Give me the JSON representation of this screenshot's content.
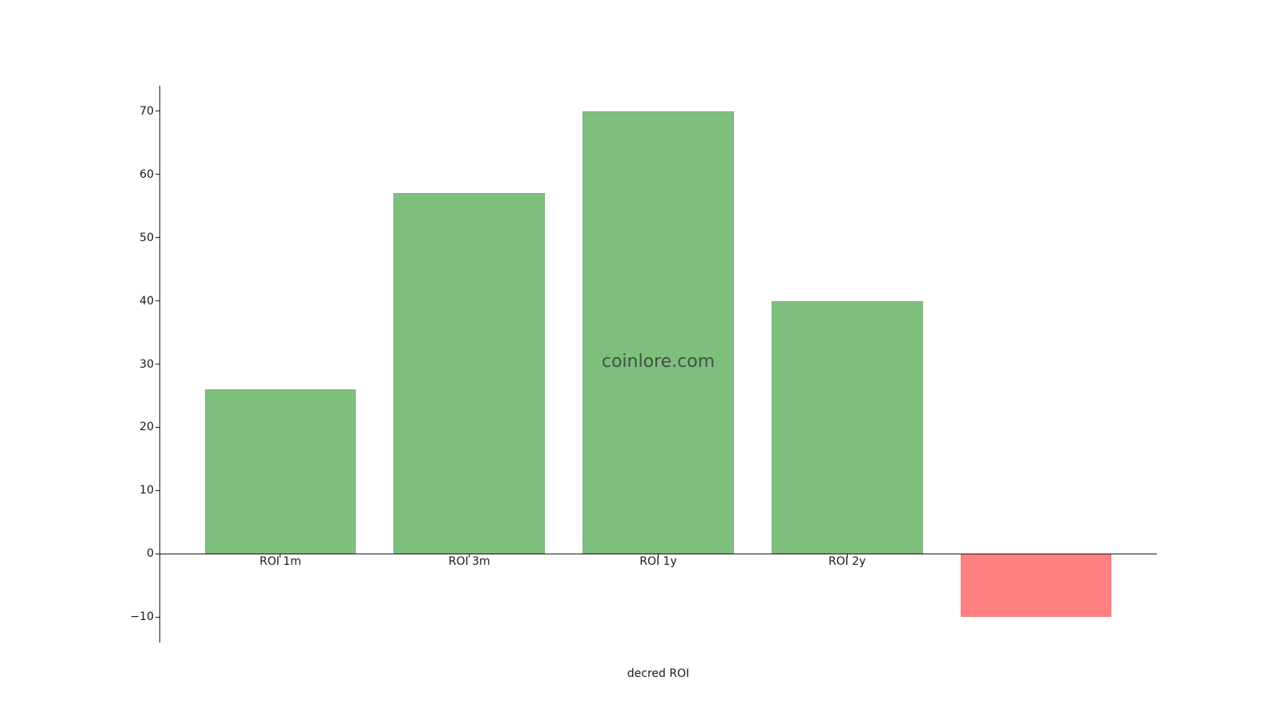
{
  "page": {
    "background": "#ffffff"
  },
  "chart_data": {
    "type": "bar",
    "title": "",
    "xlabel": "decred ROI",
    "ylabel": "",
    "watermark": "coinlore.com",
    "categories": [
      "ROI 1m",
      "ROI 3m",
      "ROI 1y",
      "ROI 2y",
      ""
    ],
    "values": [
      26,
      57,
      70,
      40,
      -10
    ],
    "bar_colors": [
      "#7ebf7e",
      "#7ebf7e",
      "#7ebf7e",
      "#7ebf7e",
      "#ff8080"
    ],
    "positive_color": "#7ebf7e",
    "negative_color": "#ff8080",
    "y_ticks": [
      {
        "value": 70,
        "label": "70"
      },
      {
        "value": 60,
        "label": "60"
      },
      {
        "value": 50,
        "label": "50"
      },
      {
        "value": 40,
        "label": "40"
      },
      {
        "value": 30,
        "label": "30"
      },
      {
        "value": 20,
        "label": "20"
      },
      {
        "value": 10,
        "label": "10"
      },
      {
        "value": 0,
        "label": "0"
      },
      {
        "value": -10,
        "label": "−10"
      }
    ],
    "ylim": [
      -14,
      74
    ],
    "xlim": [
      -0.64,
      4.64
    ],
    "bar_width": 0.8,
    "grid": false,
    "legend_position": "none",
    "axis_color": "#1a1a1a",
    "tick_text_color": "#1a1a1a",
    "watermark_color": "#3f523f"
  }
}
